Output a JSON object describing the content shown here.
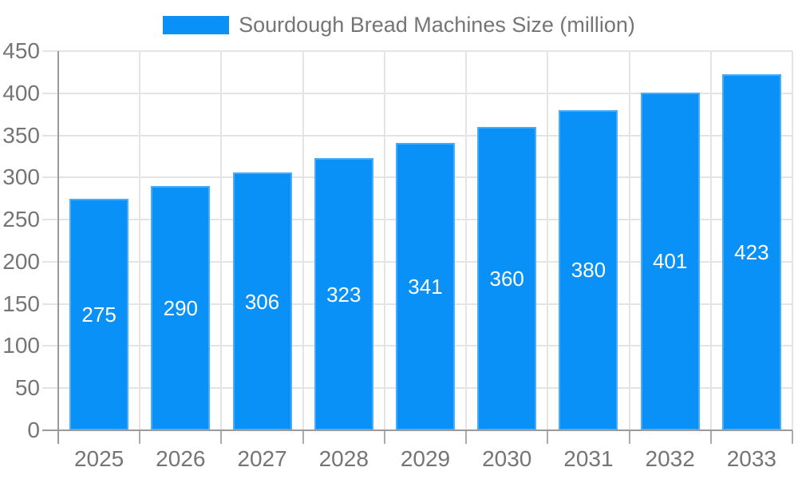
{
  "chart_data": {
    "type": "bar",
    "title": "Sourdough Bread Machines Size (million)",
    "categories": [
      "2025",
      "2026",
      "2027",
      "2028",
      "2029",
      "2030",
      "2031",
      "2032",
      "2033"
    ],
    "values": [
      275,
      290,
      306,
      323,
      341,
      360,
      380,
      401,
      423
    ],
    "xlabel": "",
    "ylabel": "",
    "ylim": [
      0,
      450
    ],
    "ytick_step": 50,
    "ytick_labels": [
      "0",
      "50",
      "100",
      "150",
      "200",
      "250",
      "300",
      "350",
      "400",
      "450"
    ],
    "grid": true,
    "legend_position": "top",
    "bar_value_labels_shown": true
  },
  "colors": {
    "bar": "#0a91f8",
    "bar_value_text": "#ffffff",
    "axis_text": "#757575",
    "legend_text": "#757575",
    "axis_line": "#9a9a9a",
    "gridline": "#e4e4e4"
  }
}
